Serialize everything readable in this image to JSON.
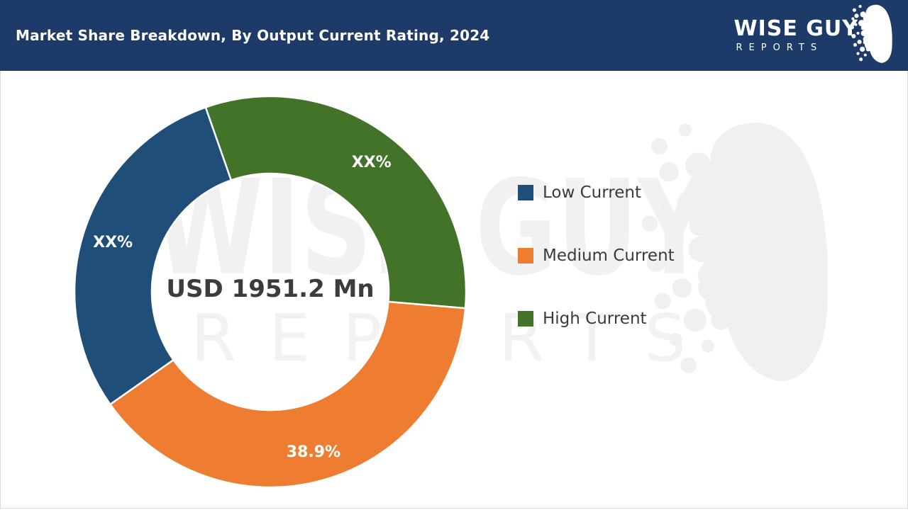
{
  "header": {
    "title": "Market Share Breakdown, By Output Current Rating, 2024",
    "logo_line1": "WISE GUY",
    "logo_line2": "REPORTS"
  },
  "watermark": {
    "line1": "WISE GUY",
    "line2": "REPORTS"
  },
  "chart_data": {
    "type": "pie",
    "subtype": "donut",
    "title": "Market Share Breakdown, By Output Current Rating, 2024",
    "center_label": "USD 1951.2 Mn",
    "start_angle_deg": -19.3,
    "direction": "clockwise",
    "legend_position": "right",
    "segments": [
      {
        "label": "High Current",
        "display_label": "XX%",
        "value_pct": 31.7,
        "color": "#437329"
      },
      {
        "label": "Medium Current",
        "display_label": "38.9%",
        "value_pct": 38.9,
        "color": "#EE7D31"
      },
      {
        "label": "Low Current",
        "display_label": "XX%",
        "value_pct": 29.4,
        "color": "#1F4E79"
      }
    ],
    "legend": [
      {
        "label": "Low Current",
        "color": "#1F4E79"
      },
      {
        "label": "Medium Current",
        "color": "#EE7D31"
      },
      {
        "label": "High Current",
        "color": "#437329"
      }
    ]
  },
  "colors": {
    "header_bg": "#1E3A68",
    "segment_gap": "#FFFFFF",
    "center_text": "#3C3C3C",
    "legend_text": "#3A3A3A",
    "watermark": "#F0F0F0",
    "border": "#D9D9D9"
  }
}
